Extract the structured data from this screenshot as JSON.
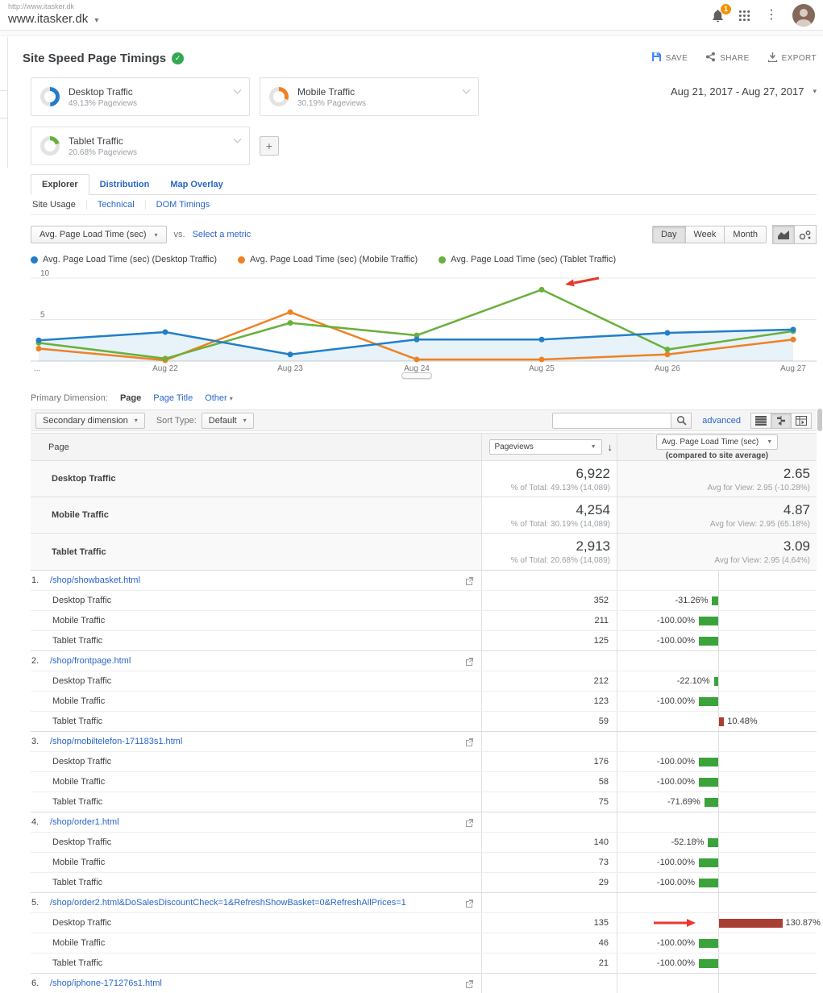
{
  "topbar": {
    "site_url": "http://www.itasker.dk",
    "site_name": "www.itasker.dk",
    "notification_badge": "1"
  },
  "icons": {
    "caret_down": "▾",
    "dropdown_arrow": "▼",
    "sort_desc": "↓",
    "kebab": "⋮",
    "plus": "+",
    "check": "✓"
  },
  "colors": {
    "desktop_series": "#217ec9",
    "mobile_series": "#ef8122",
    "tablet_series": "#6ab03c",
    "negative_bar": "#3ba33b",
    "positive_bar": "#a93e32",
    "annotation_arrow": "#e8382d",
    "link": "#2a66c9",
    "badge": "#f09300"
  },
  "report": {
    "title": "Site Speed Page Timings",
    "save_label": "SAVE",
    "share_label": "SHARE",
    "export_label": "EXPORT",
    "date_range": "Aug 21, 2017 - Aug 27, 2017"
  },
  "segments": [
    {
      "name": "Desktop Traffic",
      "detail": "49.13% Pageviews",
      "percent": 49.13,
      "color": "#217ec9"
    },
    {
      "name": "Mobile Traffic",
      "detail": "30.19% Pageviews",
      "percent": 30.19,
      "color": "#ef8122"
    },
    {
      "name": "Tablet Traffic",
      "detail": "20.68% Pageviews",
      "percent": 20.68,
      "color": "#6ab03c"
    }
  ],
  "tabs": {
    "explorer": "Explorer",
    "distribution": "Distribution",
    "map_overlay": "Map Overlay"
  },
  "subtabs": {
    "site_usage": "Site Usage",
    "technical": "Technical",
    "dom_timings": "DOM Timings"
  },
  "metric_bar": {
    "metric": "Avg. Page Load Time (sec)",
    "vs_label": "vs.",
    "select_metric": "Select a metric",
    "day": "Day",
    "week": "Week",
    "month": "Month"
  },
  "chart_data": {
    "type": "line",
    "x": [
      "...",
      "Aug 22",
      "Aug 23",
      "Aug 24",
      "Aug 25",
      "Aug 26",
      "Aug 27"
    ],
    "ylim": [
      0,
      10
    ],
    "yticks": [
      5,
      10
    ],
    "series": [
      {
        "name": "Avg. Page Load Time (sec) (Desktop Traffic)",
        "color": "#217ec9",
        "area": true,
        "values": [
          2.5,
          3.5,
          0.8,
          2.6,
          2.6,
          3.4,
          3.8
        ]
      },
      {
        "name": "Avg. Page Load Time (sec) (Mobile Traffic)",
        "color": "#ef8122",
        "values": [
          1.5,
          0.1,
          5.9,
          0.2,
          0.2,
          0.8,
          2.6
        ]
      },
      {
        "name": "Avg. Page Load Time (sec) (Tablet Traffic)",
        "color": "#6ab03c",
        "values": [
          2.2,
          0.3,
          4.6,
          3.1,
          8.6,
          1.4,
          3.6
        ]
      }
    ],
    "annotation": "red arrow pointing at Tablet Traffic peak on Aug 25"
  },
  "primary_dimension": {
    "label": "Primary Dimension:",
    "page": "Page",
    "page_title": "Page Title",
    "other": "Other"
  },
  "toolbar": {
    "secondary_dimension": "Secondary dimension",
    "sort_type_label": "Sort Type:",
    "sort_type_value": "Default",
    "search_value": "",
    "advanced": "advanced"
  },
  "table": {
    "page_header": "Page",
    "pageviews_header": "Pageviews",
    "metric_header": "Avg. Page Load Time (sec)",
    "metric_subheader": "(compared to site average)",
    "summary": [
      {
        "name": "Desktop Traffic",
        "pageviews": "6,922",
        "pageviews_note": "% of Total: 49.13% (14,089)",
        "metric": "2.65",
        "metric_note": "Avg for View: 2.95 (-10.28%)"
      },
      {
        "name": "Mobile Traffic",
        "pageviews": "4,254",
        "pageviews_note": "% of Total: 30.19% (14,089)",
        "metric": "4.87",
        "metric_note": "Avg for View: 2.95 (65.18%)"
      },
      {
        "name": "Tablet Traffic",
        "pageviews": "2,913",
        "pageviews_note": "% of Total: 20.68% (14,089)",
        "metric": "3.09",
        "metric_note": "Avg for View: 2.95 (4.64%)"
      }
    ],
    "rows": [
      {
        "index": "1.",
        "page": "/shop/showbasket.html",
        "segments": [
          {
            "name": "Desktop Traffic",
            "pageviews": "352",
            "delta_label": "-31.26%",
            "delta": -31.26
          },
          {
            "name": "Mobile Traffic",
            "pageviews": "211",
            "delta_label": "-100.00%",
            "delta": -100
          },
          {
            "name": "Tablet Traffic",
            "pageviews": "125",
            "delta_label": "-100.00%",
            "delta": -100
          }
        ]
      },
      {
        "index": "2.",
        "page": "/shop/frontpage.html",
        "segments": [
          {
            "name": "Desktop Traffic",
            "pageviews": "212",
            "delta_label": "-22.10%",
            "delta": -22.1
          },
          {
            "name": "Mobile Traffic",
            "pageviews": "123",
            "delta_label": "-100.00%",
            "delta": -100
          },
          {
            "name": "Tablet Traffic",
            "pageviews": "59",
            "delta_label": "10.48%",
            "delta": 10.48
          }
        ]
      },
      {
        "index": "3.",
        "page": "/shop/mobiltelefon-171183s1.html",
        "segments": [
          {
            "name": "Desktop Traffic",
            "pageviews": "176",
            "delta_label": "-100.00%",
            "delta": -100
          },
          {
            "name": "Mobile Traffic",
            "pageviews": "58",
            "delta_label": "-100.00%",
            "delta": -100
          },
          {
            "name": "Tablet Traffic",
            "pageviews": "75",
            "delta_label": "-71.69%",
            "delta": -71.69
          }
        ]
      },
      {
        "index": "4.",
        "page": "/shop/order1.html",
        "segments": [
          {
            "name": "Desktop Traffic",
            "pageviews": "140",
            "delta_label": "-52.18%",
            "delta": -52.18
          },
          {
            "name": "Mobile Traffic",
            "pageviews": "73",
            "delta_label": "-100.00%",
            "delta": -100
          },
          {
            "name": "Tablet Traffic",
            "pageviews": "29",
            "delta_label": "-100.00%",
            "delta": -100
          }
        ]
      },
      {
        "index": "5.",
        "page": "/shop/order2.html&DoSalesDiscountCheck=1&RefreshShowBasket=0&RefreshAllPrices=1",
        "segments": [
          {
            "name": "Desktop Traffic",
            "pageviews": "135",
            "delta_label": "130.87%",
            "delta": 130.87,
            "annotated": true
          },
          {
            "name": "Mobile Traffic",
            "pageviews": "46",
            "delta_label": "-100.00%",
            "delta": -100
          },
          {
            "name": "Tablet Traffic",
            "pageviews": "21",
            "delta_label": "-100.00%",
            "delta": -100
          }
        ]
      },
      {
        "index": "6.",
        "page": "/shop/iphone-171276s1.html",
        "segments": []
      }
    ]
  }
}
